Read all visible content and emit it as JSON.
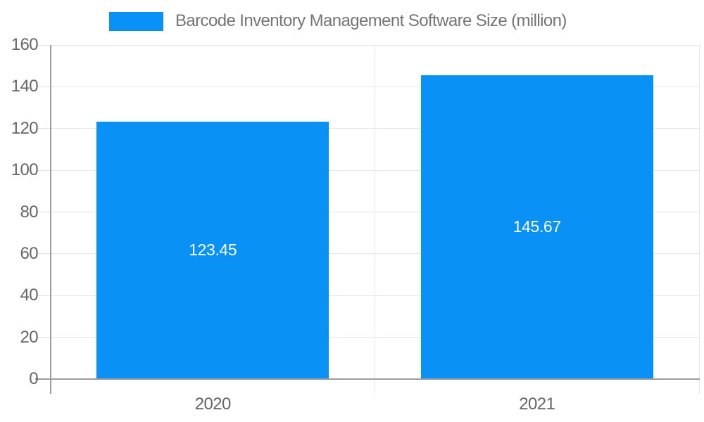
{
  "chart_data": {
    "type": "bar",
    "title": "Barcode Inventory Management Software Size (million)",
    "categories": [
      "2020",
      "2021"
    ],
    "series": [
      {
        "name": "Barcode Inventory Management Software Size (million)",
        "values": [
          123.45,
          145.67
        ]
      }
    ],
    "data_labels": [
      "123.45",
      "145.67"
    ],
    "xlabel": "",
    "ylabel": "",
    "ylim": [
      0,
      160
    ],
    "yticks": [
      0,
      20,
      40,
      60,
      80,
      100,
      120,
      140,
      160
    ],
    "grid": true,
    "legend_position": "top",
    "colors": {
      "bar": "#0991f5",
      "gridline": "#e6e6e6",
      "tick": "#e0e0e0",
      "axis": "#9e9e9e",
      "axis_label": "#666666",
      "legend_text": "#757575",
      "data_label": "#ffffff",
      "background": "#ffffff"
    }
  }
}
